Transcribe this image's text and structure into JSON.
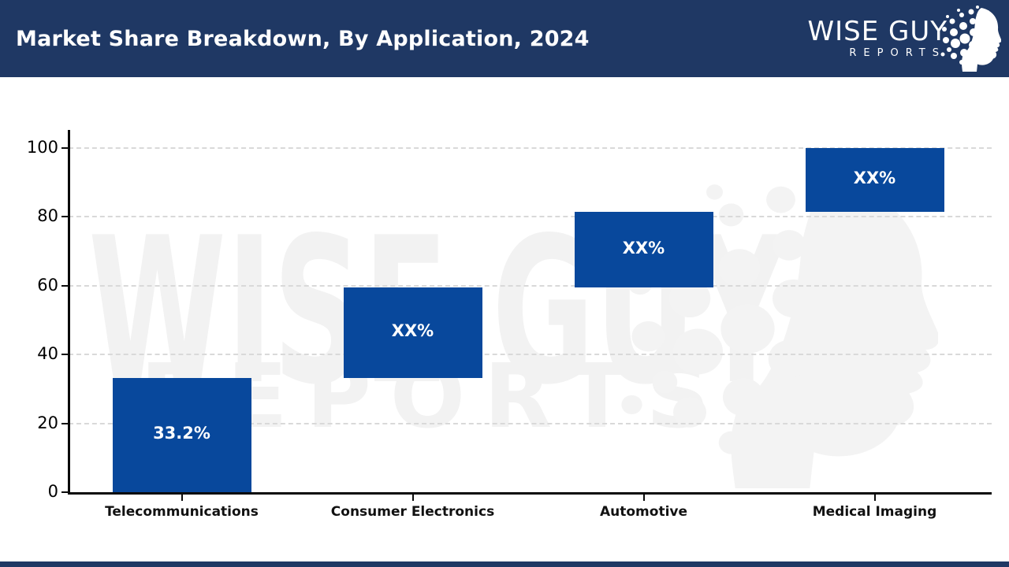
{
  "header": {
    "title": "Market Share Breakdown, By Application, 2024",
    "bg_color": "#1f3864",
    "logo": {
      "line1": "WISE GUY",
      "line2": "REPORTS"
    }
  },
  "watermark": {
    "line1": "WISE GUY",
    "line2": "REPORTS"
  },
  "footer": {
    "bg_color": "#1f3864"
  },
  "chart_data": {
    "type": "bar",
    "subtype": "waterfall",
    "title": "Market Share Breakdown, By Application, 2024",
    "categories": [
      "Telecommunications",
      "Consumer Electronics",
      "Automotive",
      "Medical Imaging"
    ],
    "segments": [
      {
        "category": "Telecommunications",
        "start": 0,
        "end": 33.2,
        "label": "33.2%"
      },
      {
        "category": "Consumer Electronics",
        "start": 33.2,
        "end": 59.4,
        "label": "XX%"
      },
      {
        "category": "Automotive",
        "start": 59.4,
        "end": 81.4,
        "label": "XX%"
      },
      {
        "category": "Medical Imaging",
        "start": 81.4,
        "end": 100,
        "label": "XX%"
      }
    ],
    "xlabel": "",
    "ylabel": "",
    "ylim": [
      0,
      100
    ],
    "yticks": [
      0,
      20,
      40,
      60,
      80,
      100
    ],
    "grid": {
      "axis": "y",
      "style": "dashed",
      "color": "#d9d9d9"
    },
    "legend": "none",
    "bar_color": "#08489c",
    "bar_label_color": "#ffffff"
  }
}
